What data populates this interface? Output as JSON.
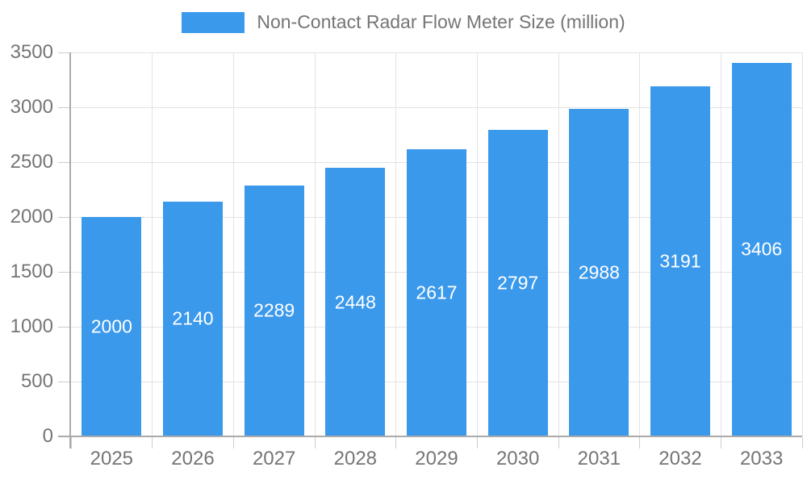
{
  "chart_data": {
    "type": "bar",
    "title": "Non-Contact Radar Flow Meter Size (million)",
    "categories": [
      "2025",
      "2026",
      "2027",
      "2028",
      "2029",
      "2030",
      "2031",
      "2032",
      "2033"
    ],
    "values": [
      2000,
      2140,
      2289,
      2448,
      2617,
      2797,
      2988,
      3191,
      3406
    ],
    "xlabel": "",
    "ylabel": "",
    "ylim": [
      0,
      3500
    ],
    "y_ticks": [
      0,
      500,
      1000,
      1500,
      2000,
      2500,
      3000,
      3500
    ],
    "grid": true,
    "legend_position": "top-center",
    "value_label_position": "inside-middle",
    "colors": {
      "bar": "#3B99EC",
      "grid_line": "#E3E3E3",
      "axis_line": "#AAAAAA",
      "tick_mark": "#CCCCCC",
      "axis_text": "#757575",
      "value_text": "#FFFFFF"
    }
  }
}
